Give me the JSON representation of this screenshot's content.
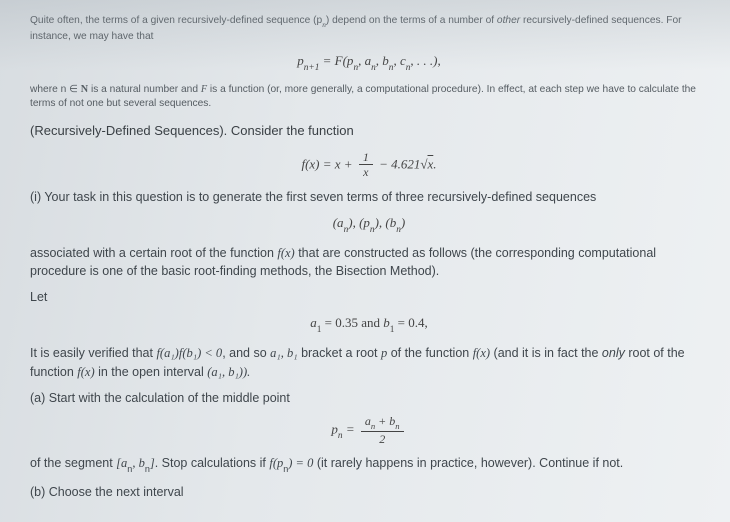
{
  "intro_line1": "Quite often, the terms of a given recursively-defined sequence (p",
  "intro_sub1": "n",
  "intro_line1b": ") depend on the terms of a number of ",
  "intro_other": "other",
  "intro_line1c": " recursively-defined sequences. For instance, we may have that",
  "formula1_lhs": "p",
  "formula1_lhs_sub": "n+1",
  "formula1_eq": " = F(p",
  "formula1_args_a": ", a",
  "formula1_args_b": ", b",
  "formula1_args_c": ", c",
  "formula1_sub": "n",
  "formula1_tail": ", . . .),",
  "subnote_a": "where n ∈ ",
  "subnote_N": "N",
  "subnote_b": " is a natural number and ",
  "subnote_F": "F",
  "subnote_c": " is a function (or, more generally, a computational procedure). In effect, at each step we have to calculate the terms of not one but several sequences.",
  "section_title": "(Recursively-Defined Sequences). Consider the function",
  "fx_lead": "f(x) = x + ",
  "fx_num": "1",
  "fx_den": "x",
  "fx_minus": " − 4.621",
  "fx_sqrt": "√",
  "fx_sqrt_arg": "x",
  "fx_period": ".",
  "q_i": "(i) Your task in this question is to generate the first seven terms of three recursively-defined sequences",
  "triple_a": "(a",
  "triple_p": "), (p",
  "triple_b": "), (b",
  "triple_sub": "n",
  "triple_end": ")",
  "assoc_a": "associated with a certain root of the function ",
  "fx_inline": "f(x)",
  "assoc_b": " that are constructed as follows (the corresponding computational procedure is one of the basic root-finding methods, the Bisection Method).",
  "let": "Let",
  "init_a": "a",
  "init_a_sub": "1",
  "init_a_val": " = 0.35 and ",
  "init_b": "b",
  "init_b_sub": "1",
  "init_b_val": " = 0.4,",
  "verify_a": "It is easily verified that ",
  "verify_exp": "f(a₁)f(b₁) < 0",
  "verify_b": ", and so ",
  "verify_ab": "a₁, b₁",
  "verify_c": " bracket a root ",
  "verify_p": "p",
  "verify_d": " of the function ",
  "verify_e": " (and it is in fact the ",
  "only_word": "only",
  "verify_f": " root of the function ",
  "verify_g": " in the open interval ",
  "interval": "(a₁, b₁)).",
  "step_a": "(a) Start with the calculation of the middle point",
  "pn_lhs": "p",
  "pn_sub": "n",
  "pn_eq": " = ",
  "pn_num_a": "a",
  "pn_num_plus": " + b",
  "pn_den": "2",
  "seg_a": "of the segment ",
  "seg_br": "[a",
  "seg_mid": ", b",
  "seg_end": "]",
  "seg_b": ". Stop calculations if ",
  "fp_zero": "f(p",
  "fp_zero_b": ") = 0",
  "seg_c": " (it rarely happens in practice, however). Continue if not.",
  "step_b": "(b) Choose the next interval"
}
